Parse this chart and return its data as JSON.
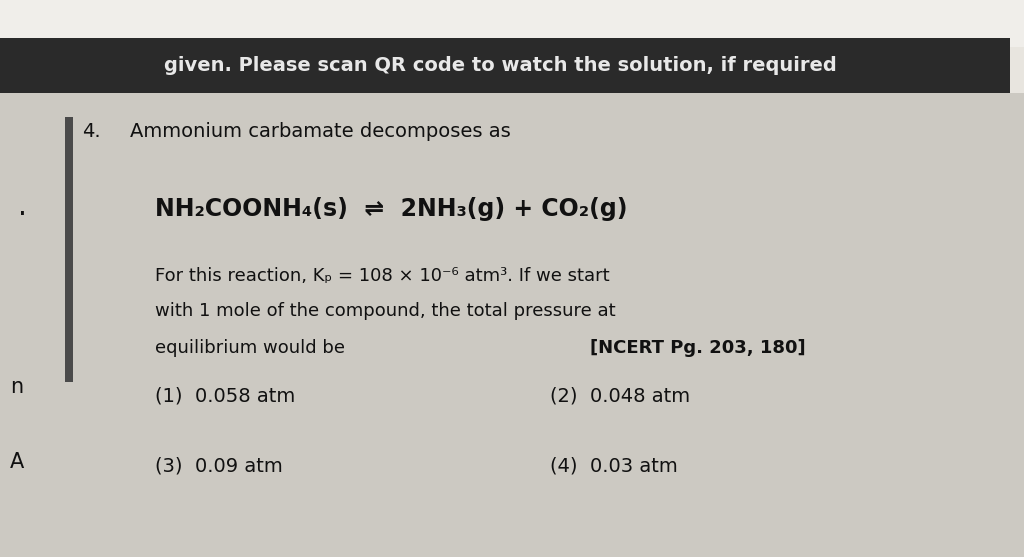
{
  "bg_color": "#ccc9c2",
  "banner_color": "#2a2a2a",
  "banner_text": "given. Please scan QR code to watch the solution, if required",
  "banner_text_color": "#e8e8e8",
  "question_number": "4.",
  "question_text": "Ammonium carbamate decomposes as",
  "equation": "NH₂COONH₄(s)  ⇌  2NH₃(g) + CO₂(g)",
  "body_text_line1": "For this reaction, Kₚ = 108 × 10⁻⁶ atm³. If we start",
  "body_text_line2": "with 1 mole of the compound, the total pressure at",
  "body_text_line3": "equilibrium would be",
  "body_text_ref": "[NCERT Pg. 203, 180]",
  "options": [
    "(1)  0.058 atm",
    "(2)  0.048 atm",
    "(3)  0.09 atm",
    "(4)  0.03 atm"
  ],
  "left_bar_color": "#4a4a4a",
  "text_color": "#111111",
  "font_size_banner": 14,
  "font_size_question": 14,
  "font_size_equation": 17,
  "font_size_body": 13,
  "font_size_options": 14,
  "white_area_color": "#e8e5df"
}
